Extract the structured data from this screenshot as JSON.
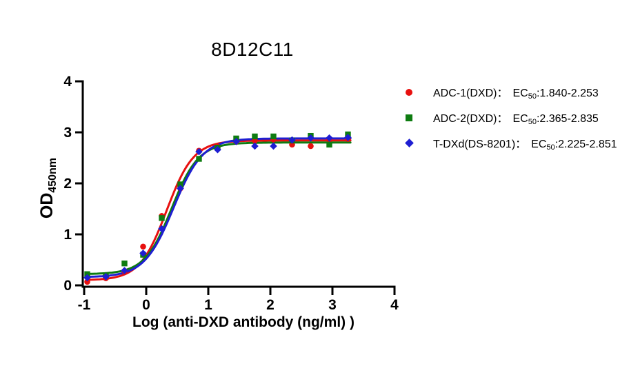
{
  "chart": {
    "title": "8D12C11",
    "x_axis": {
      "label": "Log (anti-DXD antibody (ng/ml) )",
      "min": -1,
      "max": 4,
      "ticks": [
        -1,
        0,
        1,
        2,
        3,
        4
      ]
    },
    "y_axis": {
      "label_main": "OD",
      "label_sub": "450nm",
      "min": 0,
      "max": 4,
      "ticks": [
        0,
        1,
        2,
        3,
        4
      ]
    }
  },
  "legend": [
    {
      "name": "ADC-1(DXD)",
      "separator": "：",
      "ec_label": "EC",
      "ec_sub": "50",
      "ec_value": ":1.840-2.253"
    },
    {
      "name": "ADC-2(DXD)",
      "separator": "：",
      "ec_label": "EC",
      "ec_sub": "50",
      "ec_value": ":2.365-2.835"
    },
    {
      "name": "T-DXd(DS-8201)",
      "separator": "：",
      "ec_label": "EC",
      "ec_sub": "50",
      "ec_value": ":2.225-2.851"
    }
  ],
  "chart_data": {
    "type": "scatter",
    "title": "8D12C11",
    "xlabel": "Log (anti-DXD antibody (ng/ml) )",
    "ylabel": "OD450nm",
    "xlim": [
      -1,
      4
    ],
    "ylim": [
      0,
      4
    ],
    "grid": false,
    "legend_position": "right",
    "x": [
      -0.95,
      -0.65,
      -0.35,
      -0.05,
      0.25,
      0.55,
      0.85,
      1.15,
      1.45,
      1.75,
      2.05,
      2.35,
      2.65,
      2.95,
      3.25
    ],
    "curve_x_range": [
      -0.95,
      3.3
    ],
    "series": [
      {
        "name": "ADC-1(DXD)",
        "ec50_range": "1.840-2.253",
        "color": "#e8100f",
        "marker": "circle",
        "values": [
          0.07,
          0.14,
          0.28,
          0.76,
          1.36,
          1.9,
          2.64,
          2.72,
          2.82,
          2.84,
          2.86,
          2.76,
          2.73,
          2.85,
          2.87
        ],
        "fit": {
          "bottom": 0.1,
          "top": 2.84,
          "logec50": 0.33,
          "hill": 2.0
        }
      },
      {
        "name": "ADC-2(DXD)",
        "ec50_range": "2.365-2.835",
        "color": "#0e7c11",
        "marker": "square",
        "values": [
          0.22,
          0.2,
          0.43,
          0.6,
          1.32,
          1.98,
          2.48,
          2.7,
          2.88,
          2.92,
          2.92,
          2.84,
          2.93,
          2.76,
          2.96
        ],
        "fit": {
          "bottom": 0.22,
          "top": 2.8,
          "logec50": 0.41,
          "hill": 2.0
        }
      },
      {
        "name": "T-DXd(DS-8201)",
        "ec50_range": "2.225-2.851",
        "color": "#1e1ed2",
        "marker": "diamond",
        "values": [
          0.15,
          0.17,
          0.29,
          0.63,
          1.11,
          1.9,
          2.62,
          2.66,
          2.82,
          2.73,
          2.73,
          2.85,
          2.89,
          2.89,
          2.9
        ],
        "fit": {
          "bottom": 0.16,
          "top": 2.88,
          "logec50": 0.44,
          "hill": 1.85
        }
      }
    ]
  }
}
